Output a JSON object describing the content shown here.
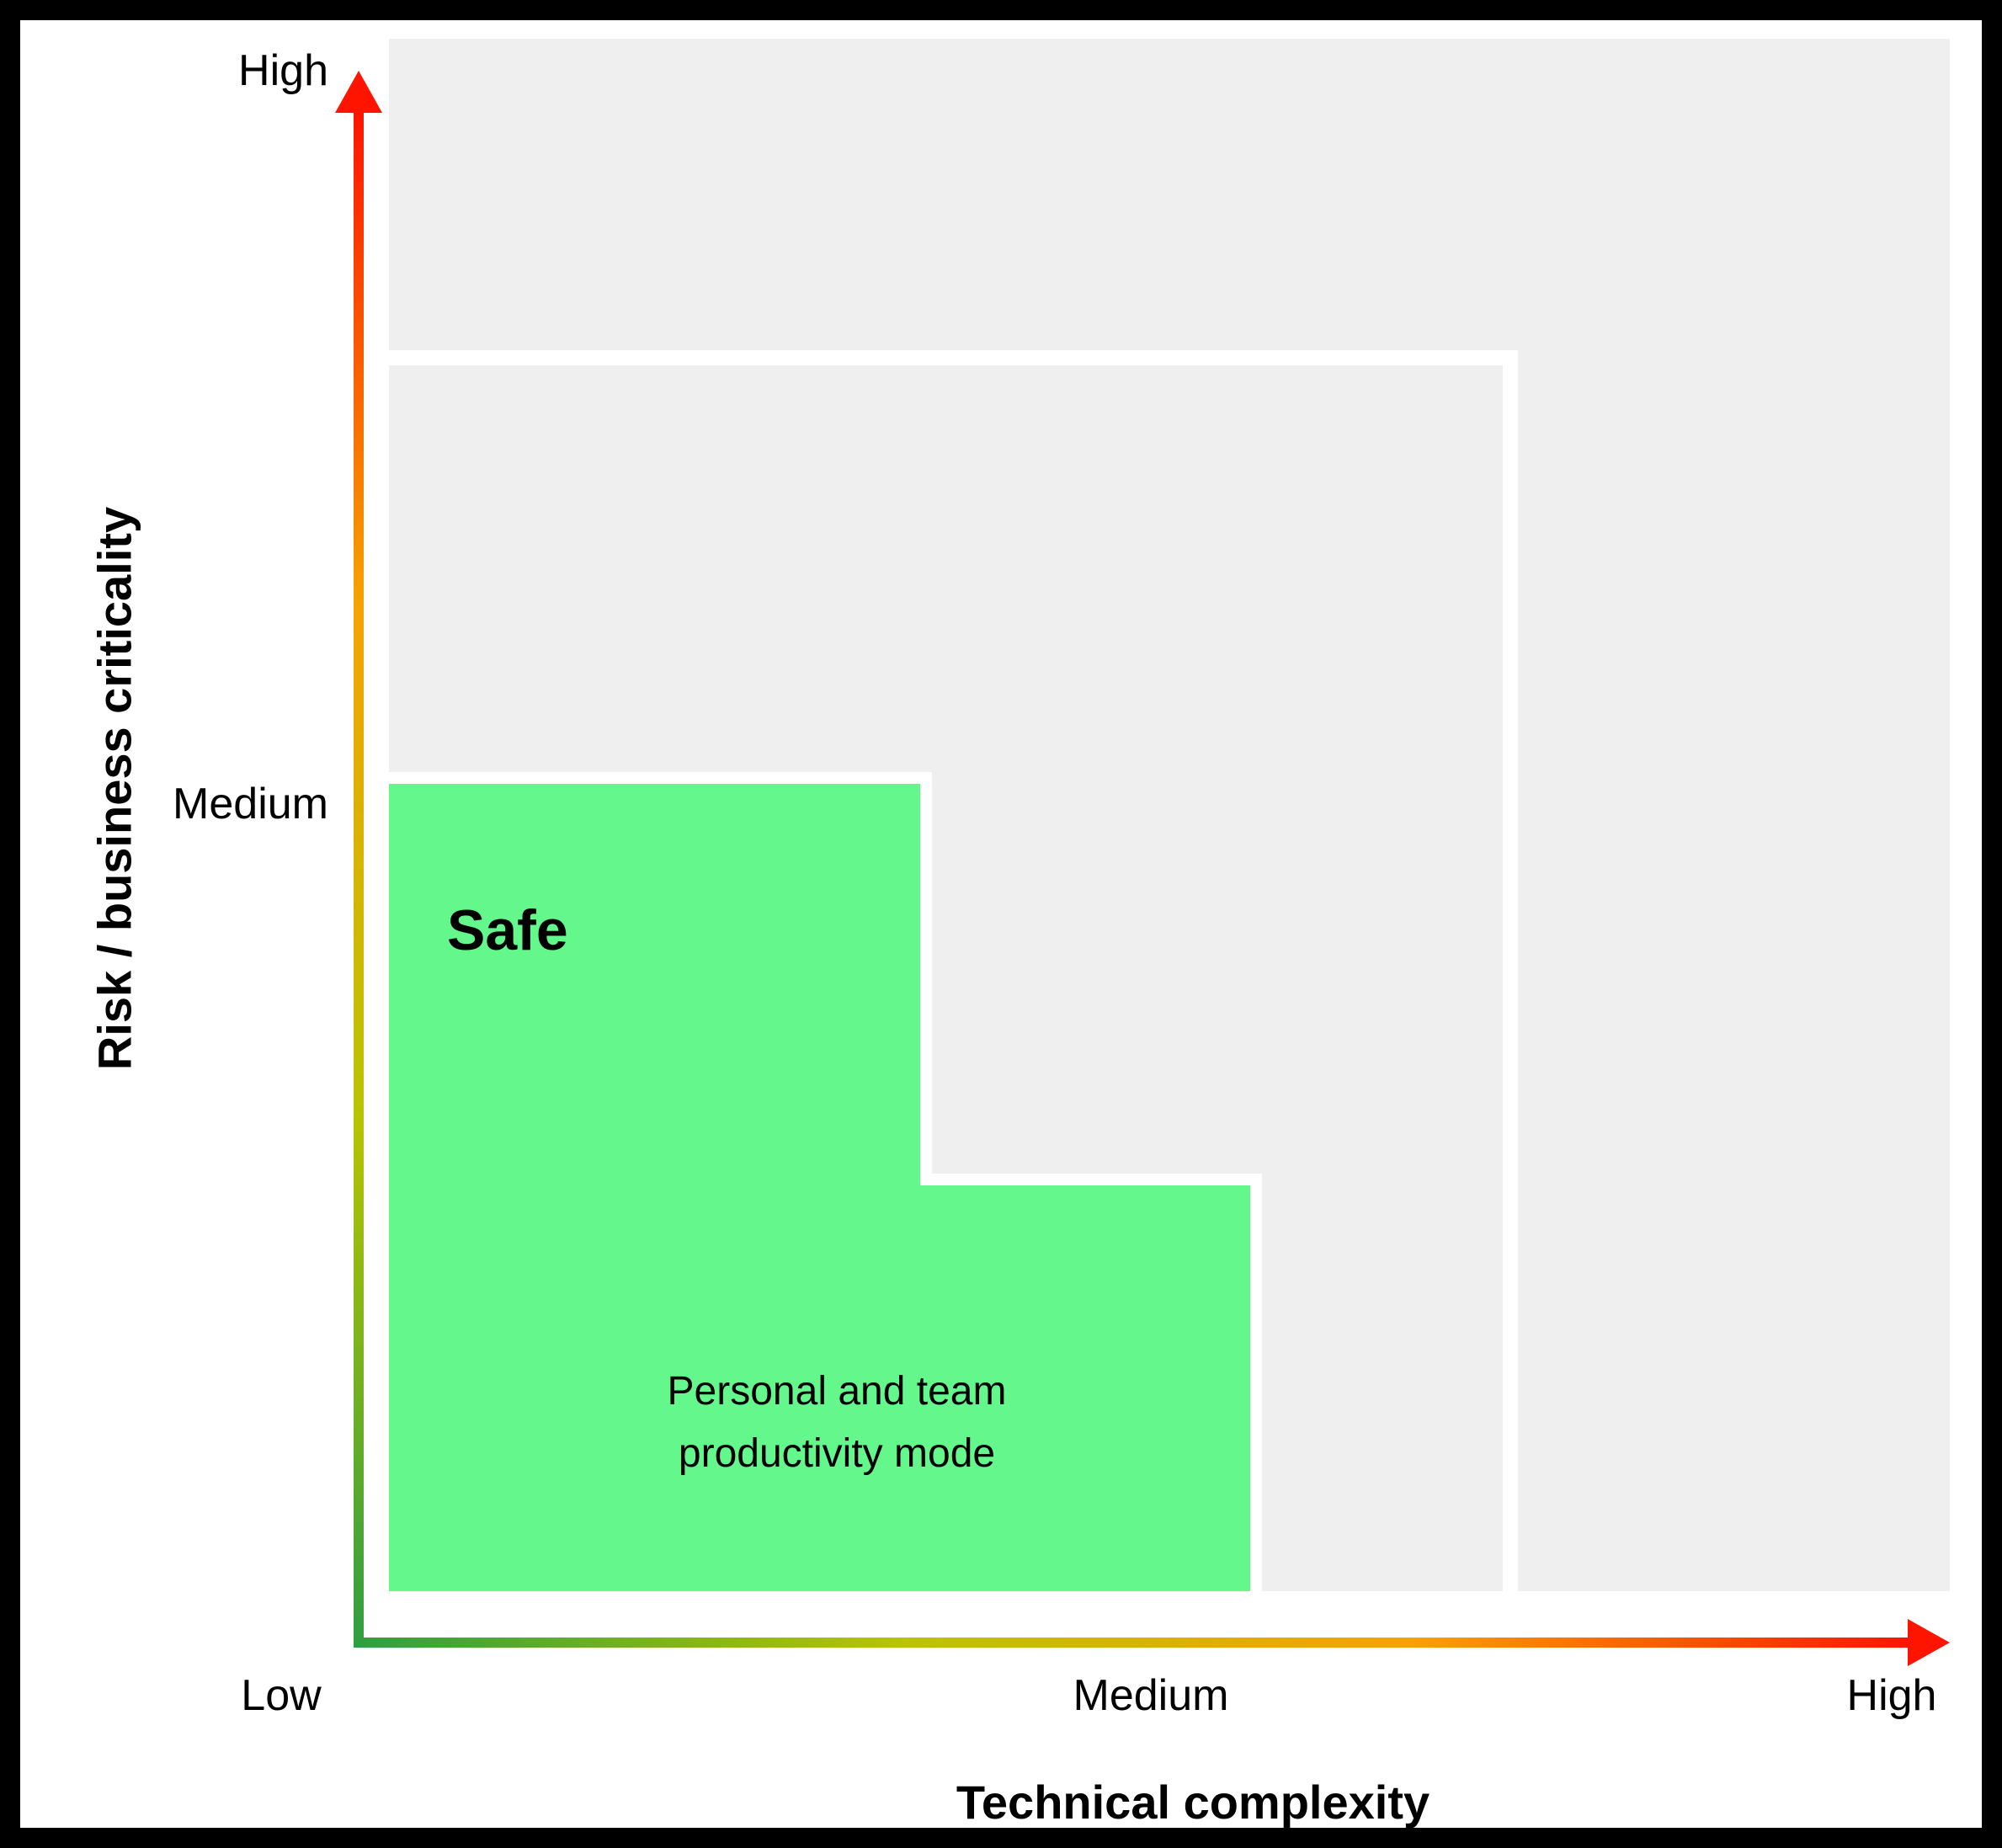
{
  "chart": {
    "y_axis_label": "Risk / business criticality",
    "x_axis_label": "Technical complexity",
    "y_tick_high": "High",
    "y_tick_medium": "Medium",
    "x_tick_low": "Low",
    "x_tick_medium": "Medium",
    "x_tick_high": "High",
    "safe_label": "Safe",
    "safe_sublabel": "Personal and team productivity mode"
  },
  "chart_data": {
    "type": "area",
    "title": "",
    "xlabel": "Technical complexity",
    "ylabel": "Risk / business criticality",
    "x_ticks": [
      "Low",
      "Medium",
      "High"
    ],
    "y_ticks": [
      "Low",
      "Medium",
      "High"
    ],
    "x_range": [
      0,
      1
    ],
    "y_range": [
      0,
      1
    ],
    "grid": false,
    "legend": "none",
    "zones": [
      {
        "name": "outer-risk-zone",
        "color": "#efefef",
        "label": "",
        "extent": "entire plot area (x 0-1, y 0-1)"
      },
      {
        "name": "mid-risk-zone",
        "color": "#efefef",
        "label": "",
        "polygon_xy": [
          [
            0,
            0
          ],
          [
            0.71,
            0
          ],
          [
            0.71,
            0.79
          ],
          [
            0,
            0.79
          ]
        ]
      },
      {
        "name": "safe-zone",
        "color": "#63f78c",
        "label": "Safe",
        "sublabel": "Personal and team productivity mode",
        "polygon_xy": [
          [
            0,
            0
          ],
          [
            0.55,
            0
          ],
          [
            0.55,
            0.26
          ],
          [
            0.34,
            0.26
          ],
          [
            0.34,
            0.52
          ],
          [
            0,
            0.52
          ]
        ],
        "note": "L-shaped step region: reaches Medium risk at low complexity, steps down before Medium complexity"
      }
    ],
    "axis_gradient": [
      "#2f9e41",
      "#b9c400",
      "#f5a300",
      "#ff1400"
    ],
    "colors": {
      "safe_green": "#63f78c",
      "zone_gray": "#efefef",
      "arrow_red": "#ff1400",
      "origin_green": "#2f9e41",
      "background": "#ffffff",
      "frame": "#000000",
      "text": "#000000"
    }
  }
}
